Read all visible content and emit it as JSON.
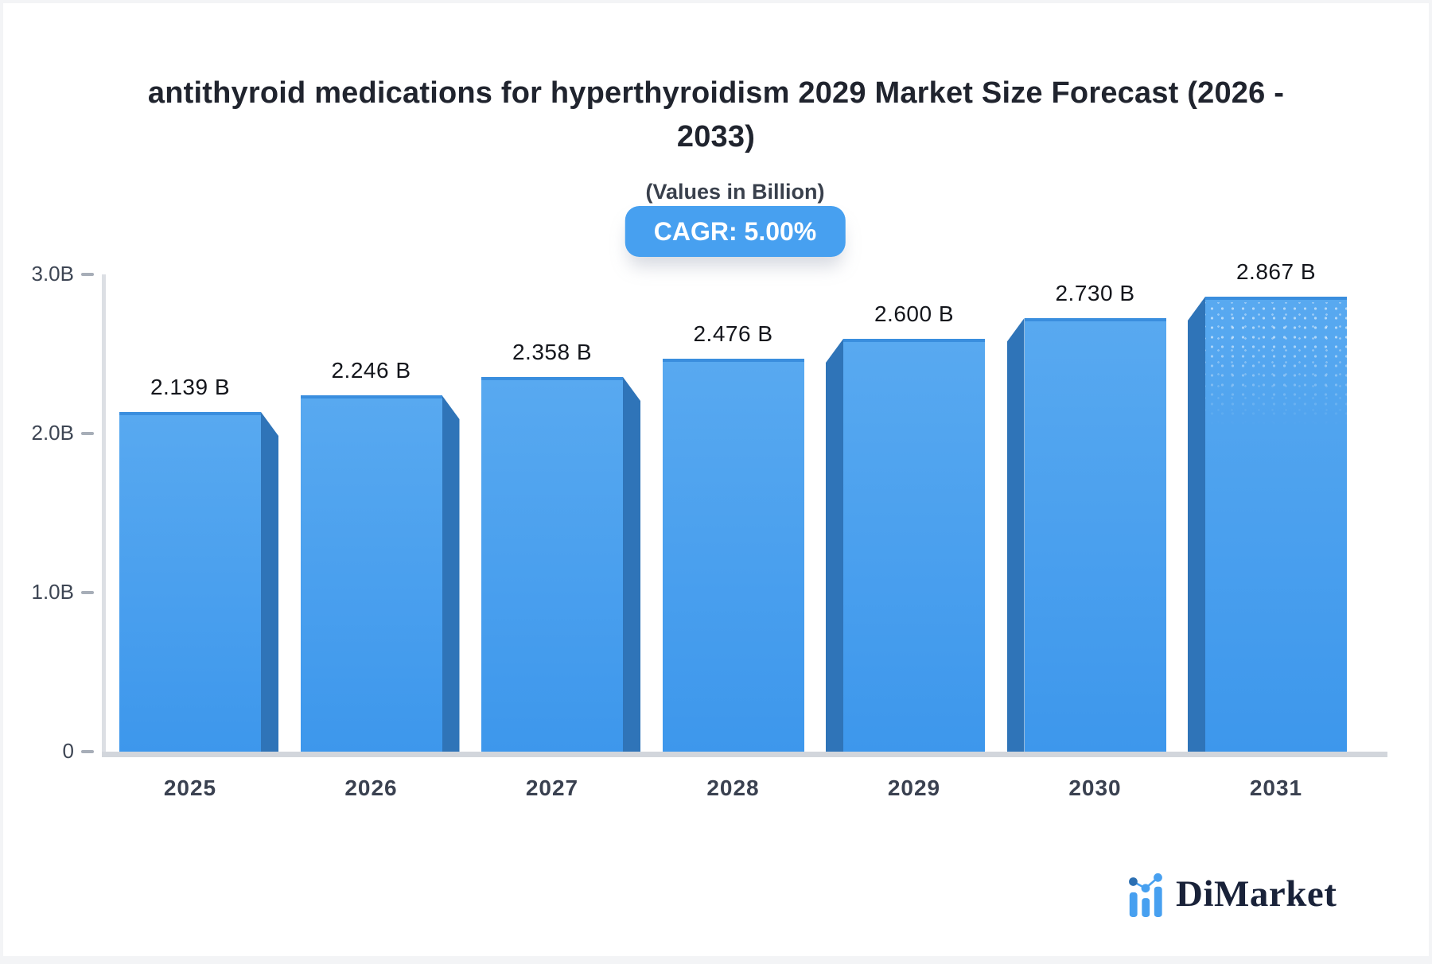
{
  "header": {
    "title_line1": "antithyroid medications for hyperthyroidism 2029 Market Size Forecast (2026 -",
    "title_line2": "2033)",
    "subtitle": "(Values in Billion)",
    "cagr_badge": "CAGR: 5.00%"
  },
  "chart_data": {
    "type": "bar",
    "title": "antithyroid medications for hyperthyroidism 2029 Market Size Forecast (2026 - 2033)",
    "subtitle": "(Values in Billion)",
    "cagr": "5.00%",
    "categories": [
      "2025",
      "2026",
      "2027",
      "2028",
      "2029",
      "2030",
      "2031"
    ],
    "values": [
      2.139,
      2.246,
      2.358,
      2.476,
      2.6,
      2.73,
      2.867
    ],
    "value_labels": [
      "2.139 B",
      "2.246 B",
      "2.358 B",
      "2.476 B",
      "2.600 B",
      "2.730 B",
      "2.867 B"
    ],
    "ylim": [
      0,
      3
    ],
    "yticks": [
      {
        "value": 3,
        "label": "3.0B"
      },
      {
        "value": 2,
        "label": "2.0B"
      },
      {
        "value": 1,
        "label": "1.0B"
      },
      {
        "value": 0,
        "label": "0"
      }
    ],
    "grid": false,
    "legend": false,
    "bar_style": "3d-perspective",
    "dotted_texture_bar": "2031"
  },
  "colors": {
    "accent_blue": "#47a0f0",
    "bar_face_top": "#58a9f0",
    "bar_face_bottom": "#3d97ec",
    "bar_top_edge": "#3a8ede",
    "bar_side": "#2f74b8",
    "axis_line": "#d2d6dc",
    "tick_dash": "#a7aeb8",
    "logo_navy": "#192239"
  },
  "footer": {
    "brand": "DiMarket"
  }
}
